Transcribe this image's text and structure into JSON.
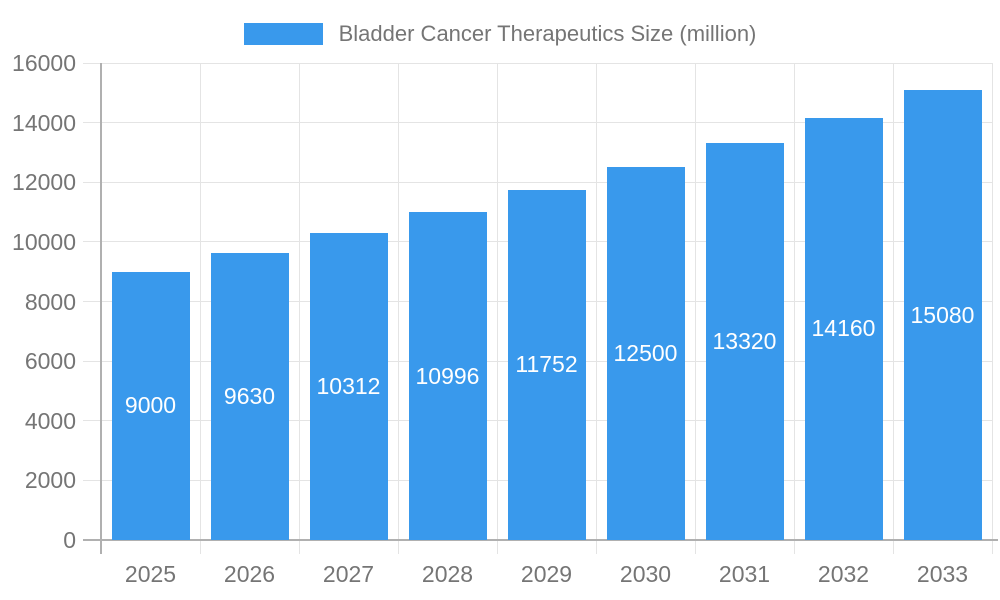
{
  "chart_data": {
    "type": "bar",
    "title": "",
    "legend": "Bladder Cancer Therapeutics Size (million)",
    "legend_position": "top",
    "categories": [
      "2025",
      "2026",
      "2027",
      "2028",
      "2029",
      "2030",
      "2031",
      "2032",
      "2033"
    ],
    "values": [
      9000,
      9630,
      10312,
      10996,
      11752,
      12500,
      13320,
      14160,
      15080
    ],
    "xlabel": "",
    "ylabel": "",
    "ylim": [
      0,
      16000
    ],
    "yticks": [
      0,
      2000,
      4000,
      6000,
      8000,
      10000,
      12000,
      14000,
      16000
    ],
    "grid": true,
    "bar_labels_visible": true,
    "colors": {
      "bar": "#3999ec",
      "bar_label": "#ffffff",
      "axis_text": "#757575",
      "gridline": "#e4e4e4",
      "axis_line": "#b0b0b0",
      "background": "#ffffff"
    }
  }
}
